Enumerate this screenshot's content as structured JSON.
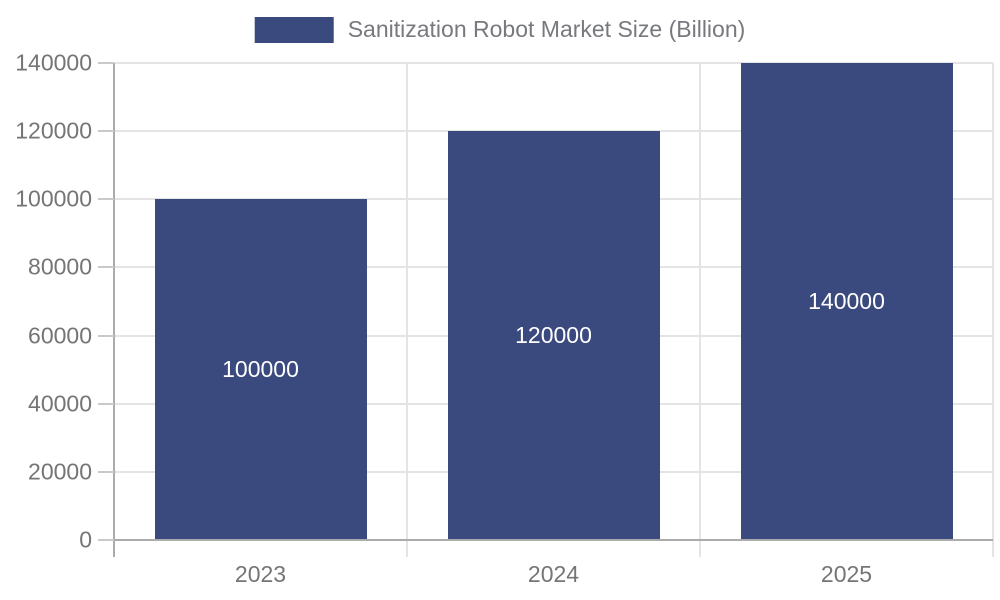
{
  "legend": {
    "label": "Sanitization Robot Market Size (Billion)"
  },
  "chart_data": {
    "type": "bar",
    "title": "Sanitization Robot Market Size (Billion)",
    "categories": [
      "2023",
      "2024",
      "2025"
    ],
    "values": [
      100000,
      120000,
      140000
    ],
    "bar_labels": [
      "100000",
      "120000",
      "140000"
    ],
    "xlabel": "",
    "ylabel": "",
    "ylim": [
      0,
      140000
    ],
    "y_ticks": [
      0,
      20000,
      40000,
      60000,
      80000,
      100000,
      120000,
      140000
    ],
    "y_tick_labels": [
      "0",
      "20000",
      "40000",
      "60000",
      "80000",
      "100000",
      "120000",
      "140000"
    ],
    "grid": true,
    "legend_position": "top-center",
    "colors": {
      "bar": "#3A4A7E",
      "bar_label_text": "#FFFFFF",
      "axis_label": "#757575",
      "legend_text": "#77797E",
      "grid_line": "#E4E4E4",
      "axis_line": "#ABABAB",
      "tick_line": "#C9C9C9",
      "background": "#FFFFFF"
    }
  }
}
